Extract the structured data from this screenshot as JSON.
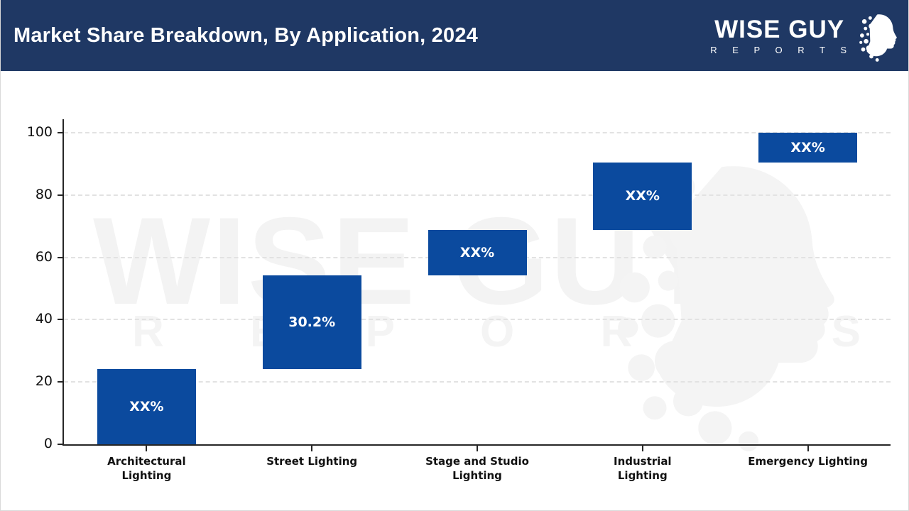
{
  "header": {
    "title": "Market Share Breakdown, By Application, 2024",
    "bg_color": "#1f3864",
    "logo": {
      "line1": "WISE GUY",
      "line2": "R E P O R T S"
    }
  },
  "watermark": {
    "line1": "WISE GUY",
    "line2": "R E P O R T S"
  },
  "chart_data": {
    "type": "bar",
    "subtype": "waterfall",
    "title": "Market Share Breakdown, By Application, 2024",
    "categories": [
      "Architectural\nLighting",
      "Street Lighting",
      "Stage and Studio\nLighting",
      "Industrial\nLighting",
      "Emergency Lighting"
    ],
    "values": [
      24.1,
      30.2,
      14.6,
      21.6,
      9.5
    ],
    "cumulative_start": [
      0,
      24.1,
      54.3,
      68.9,
      90.5
    ],
    "cumulative_end": [
      24.1,
      54.3,
      68.9,
      90.5,
      100
    ],
    "bar_labels": [
      "XX%",
      "30.2%",
      "XX%",
      "XX%",
      "XX%"
    ],
    "xlabel": "",
    "ylabel": "",
    "ylim": [
      0,
      105
    ],
    "yticks": [
      0,
      20,
      40,
      60,
      80,
      100
    ],
    "grid": "horizontal dashed",
    "legend": "none",
    "bar_color": "#0b4a9e",
    "bar_label_color": "#ffffff",
    "axis_color": "#262626"
  }
}
